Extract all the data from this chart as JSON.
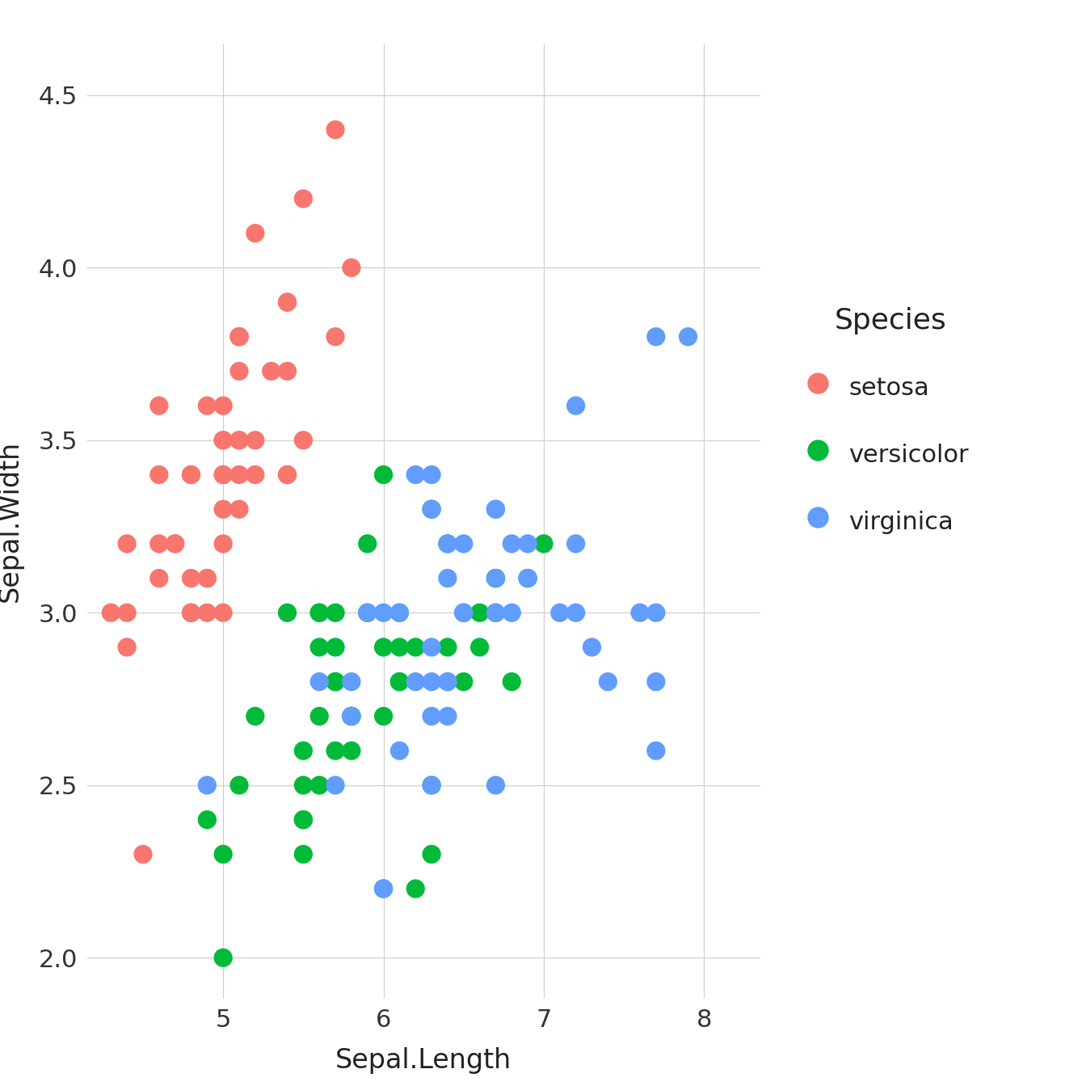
{
  "title": "",
  "xlabel": "Sepal.Length",
  "ylabel": "Sepal.Width",
  "xlim": [
    4.15,
    8.35
  ],
  "ylim": [
    1.88,
    4.65
  ],
  "xticks": [
    5,
    6,
    7,
    8
  ],
  "yticks": [
    2.0,
    2.5,
    3.0,
    3.5,
    4.0,
    4.5
  ],
  "background_color": "#FFFFFF",
  "grid_color": "#CCCCCC",
  "legend_title": "Species",
  "species_colors": {
    "setosa": "#F8766D",
    "versicolor": "#00BA38",
    "virginica": "#619CFF"
  },
  "marker_size": 280,
  "setosa": {
    "sepal_length": [
      5.1,
      4.9,
      4.7,
      4.6,
      5.0,
      5.4,
      4.6,
      5.0,
      4.4,
      4.9,
      5.4,
      4.8,
      4.8,
      4.3,
      5.8,
      5.7,
      5.4,
      5.1,
      5.7,
      5.1,
      5.4,
      5.1,
      4.6,
      5.1,
      4.8,
      5.0,
      5.0,
      5.2,
      5.2,
      4.7,
      4.8,
      5.4,
      5.2,
      5.5,
      4.9,
      5.0,
      5.5,
      4.9,
      4.4,
      5.1,
      5.0,
      4.5,
      4.4,
      5.0,
      5.1,
      4.8,
      5.1,
      4.6,
      5.3,
      5.0
    ],
    "sepal_width": [
      3.5,
      3.0,
      3.2,
      3.1,
      3.6,
      3.9,
      3.4,
      3.4,
      2.9,
      3.1,
      3.7,
      3.4,
      3.0,
      3.0,
      4.0,
      4.4,
      3.9,
      3.5,
      3.8,
      3.8,
      3.4,
      3.7,
      3.6,
      3.3,
      3.4,
      3.0,
      3.4,
      3.5,
      3.4,
      3.2,
      3.1,
      3.4,
      4.1,
      4.2,
      3.1,
      3.2,
      3.5,
      3.6,
      3.0,
      3.4,
      3.5,
      2.3,
      3.2,
      3.5,
      3.8,
      3.0,
      3.8,
      3.2,
      3.7,
      3.3
    ]
  },
  "versicolor": {
    "sepal_length": [
      7.0,
      6.4,
      6.9,
      5.5,
      6.5,
      5.7,
      6.3,
      4.9,
      6.6,
      5.2,
      5.0,
      5.9,
      6.0,
      6.1,
      5.6,
      6.7,
      5.6,
      5.8,
      6.2,
      5.6,
      5.9,
      6.1,
      6.3,
      6.1,
      6.4,
      6.6,
      6.8,
      6.7,
      6.0,
      5.7,
      5.5,
      5.5,
      5.8,
      6.0,
      5.4,
      6.0,
      6.7,
      6.3,
      5.6,
      5.5,
      5.5,
      6.1,
      5.8,
      5.0,
      5.6,
      5.7,
      5.7,
      6.2,
      5.1,
      5.7
    ],
    "sepal_width": [
      3.2,
      3.2,
      3.1,
      2.3,
      2.8,
      2.8,
      3.3,
      2.4,
      2.9,
      2.7,
      2.0,
      3.0,
      2.2,
      2.9,
      2.9,
      3.1,
      3.0,
      2.7,
      2.2,
      2.5,
      3.2,
      2.8,
      2.5,
      2.8,
      2.9,
      3.0,
      2.8,
      3.0,
      2.9,
      2.6,
      2.4,
      2.4,
      2.7,
      2.7,
      3.0,
      3.4,
      3.1,
      2.3,
      3.0,
      2.5,
      2.6,
      3.0,
      2.6,
      2.3,
      2.7,
      3.0,
      2.9,
      2.9,
      2.5,
      2.8
    ]
  },
  "virginica": {
    "sepal_length": [
      6.3,
      5.8,
      7.1,
      6.3,
      6.5,
      7.6,
      4.9,
      7.3,
      6.7,
      7.2,
      6.5,
      6.4,
      6.8,
      5.7,
      5.8,
      6.4,
      6.5,
      7.7,
      7.7,
      6.0,
      6.9,
      5.6,
      7.7,
      6.3,
      6.7,
      7.2,
      6.2,
      6.1,
      6.4,
      7.2,
      7.4,
      7.9,
      6.4,
      6.3,
      6.1,
      7.7,
      6.3,
      6.4,
      6.0,
      6.9,
      6.7,
      6.9,
      5.8,
      6.8,
      6.7,
      6.7,
      6.3,
      6.5,
      6.2,
      5.9
    ],
    "sepal_width": [
      3.3,
      2.7,
      3.0,
      2.9,
      3.0,
      3.0,
      2.5,
      2.9,
      2.5,
      3.6,
      3.2,
      2.7,
      3.0,
      2.5,
      2.8,
      3.2,
      3.0,
      3.8,
      2.6,
      2.2,
      3.2,
      2.8,
      2.8,
      2.7,
      3.3,
      3.2,
      2.8,
      3.0,
      2.8,
      3.0,
      2.8,
      3.8,
      2.8,
      2.8,
      2.6,
      3.0,
      3.4,
      3.1,
      3.0,
      3.1,
      3.1,
      3.1,
      2.7,
      3.2,
      3.3,
      3.0,
      2.5,
      3.0,
      3.4,
      3.0
    ]
  }
}
